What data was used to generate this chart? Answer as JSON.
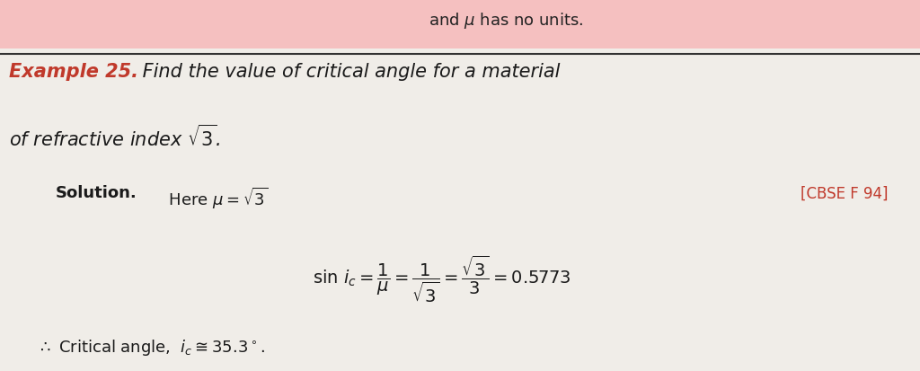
{
  "bg_color": "#f0ede8",
  "header_bar_color": "#f5c0c0",
  "header_text": "and $\\mu$ has no units.",
  "header_text_color": "#222222",
  "example_label": "Example 25.",
  "example_label_color": "#c0392b",
  "example_text": " Find the value of critical angle for a material",
  "example_text2": "of refractive index $\\sqrt{3}$.",
  "solution_label": "Solution.",
  "solution_text": " Here $\\mu = \\sqrt{3}$",
  "cbse_ref": "[CBSE F 94]",
  "cbse_ref_color": "#c0392b",
  "equation": "$\\sin\\, i_c = \\dfrac{1}{\\mu} = \\dfrac{1}{\\sqrt{3}} = \\dfrac{\\sqrt{3}}{3} = 0.5773$",
  "conclusion": "$\\therefore$ Critical angle,  $i_c \\cong 35.3^\\circ$.",
  "text_color": "#1a1a1a",
  "line_color": "#333333",
  "font_size_heading": 15,
  "font_size_body": 13,
  "font_size_eq": 14,
  "font_size_conclusion": 13
}
